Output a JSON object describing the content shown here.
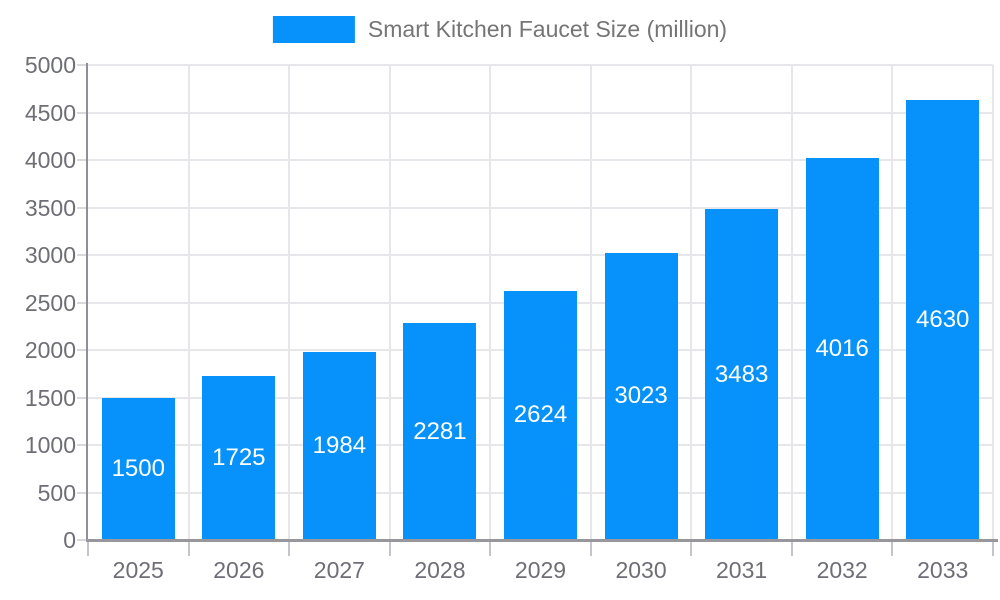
{
  "chart_data": {
    "type": "bar",
    "title": "Smart Kitchen Faucet Size (million)",
    "categories": [
      "2025",
      "2026",
      "2027",
      "2028",
      "2029",
      "2030",
      "2031",
      "2032",
      "2033"
    ],
    "series": [
      {
        "name": "Smart Kitchen Faucet Size (million)",
        "values": [
          1500,
          1725,
          1984,
          2281,
          2624,
          3023,
          3483,
          4016,
          4630
        ]
      }
    ],
    "xlabel": "",
    "ylabel": "",
    "ylim": [
      0,
      5000
    ],
    "y_tick_step": 500,
    "y_ticks": [
      0,
      500,
      1000,
      1500,
      2000,
      2500,
      3000,
      3500,
      4000,
      4500,
      5000
    ],
    "grid": true,
    "legend_position": "top",
    "value_labels_position": "inside-center",
    "colors": {
      "bar": "#0692fa",
      "bar_value_label": "#ffffff",
      "legend_text": "#757575",
      "axis_text": "#6e6e76",
      "axis_line": "#97979d",
      "gridline": "#e7e7eb"
    }
  }
}
